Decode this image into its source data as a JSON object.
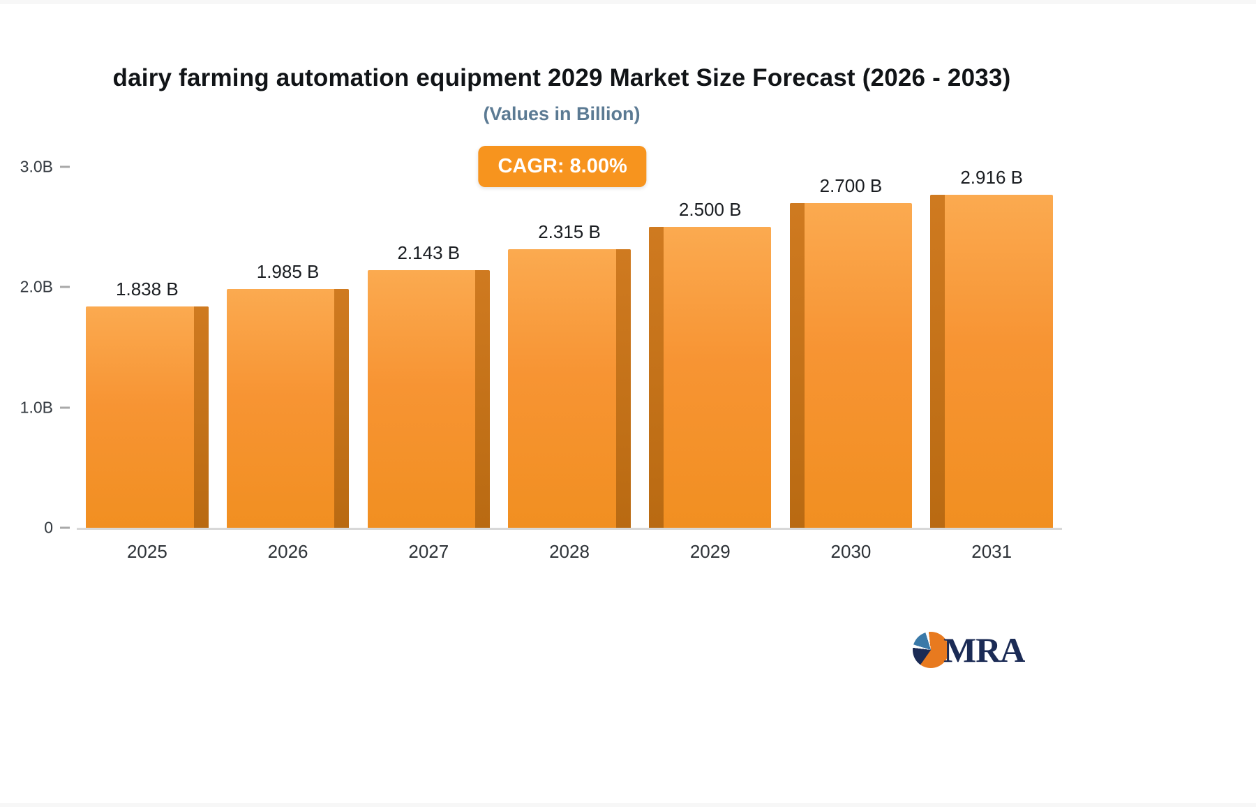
{
  "chart_data": {
    "type": "bar",
    "title": "dairy farming automation equipment 2029 Market Size Forecast (2026 - 2033)",
    "subtitle": "(Values in Billion)",
    "cagr_label": "CAGR: 8.00%",
    "categories": [
      "2025",
      "2026",
      "2027",
      "2028",
      "2029",
      "2030",
      "2031"
    ],
    "values": [
      1.838,
      1.985,
      2.143,
      2.315,
      2.5,
      2.7,
      2.916
    ],
    "value_labels": [
      "1.838 B",
      "1.985 B",
      "2.143 B",
      "2.315 B",
      "2.500 B",
      "2.700 B",
      "2.916 B"
    ],
    "xlabel": "",
    "ylabel": "",
    "ylim": [
      0,
      3.0
    ],
    "yticks": [
      {
        "value": 0,
        "label": "0"
      },
      {
        "value": 1,
        "label": "1.0B"
      },
      {
        "value": 2,
        "label": "2.0B"
      },
      {
        "value": 3,
        "label": "3.0B"
      }
    ],
    "grid": false,
    "legend": "none",
    "bar_color_top": "#fbaa50",
    "bar_color_bottom": "#f18f21",
    "bar_side_color": "#b96a12",
    "badge_color": "#f7941e",
    "baseline_color": "#d8d8d8"
  },
  "logo": {
    "text": "MRA",
    "icon": "pie-circle-icon",
    "accent_orange": "#e87a1f",
    "accent_navy": "#1b2b55",
    "accent_blue": "#3a79a8"
  }
}
